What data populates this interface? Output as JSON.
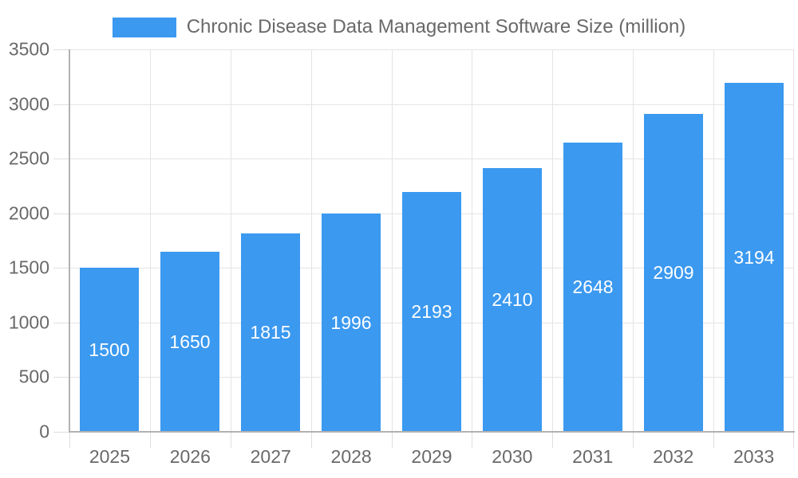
{
  "chart_data": {
    "type": "bar",
    "title": "Chronic Disease Data Management Software Size (million)",
    "legend_position": "top",
    "categories": [
      "2025",
      "2026",
      "2027",
      "2028",
      "2029",
      "2030",
      "2031",
      "2032",
      "2033"
    ],
    "values": [
      1500,
      1650,
      1815,
      1996,
      2193,
      2410,
      2648,
      2909,
      3194
    ],
    "xlabel": "",
    "ylabel": "",
    "ylim": [
      0,
      3500
    ],
    "ytick_step": 500,
    "ytick_labels": [
      "0",
      "500",
      "1000",
      "1500",
      "2000",
      "2500",
      "3000",
      "3500"
    ],
    "grid": true,
    "bar_color": "#3B99F0",
    "bar_label_color": "#FFFFFF",
    "axis_text_color": "#696969"
  }
}
